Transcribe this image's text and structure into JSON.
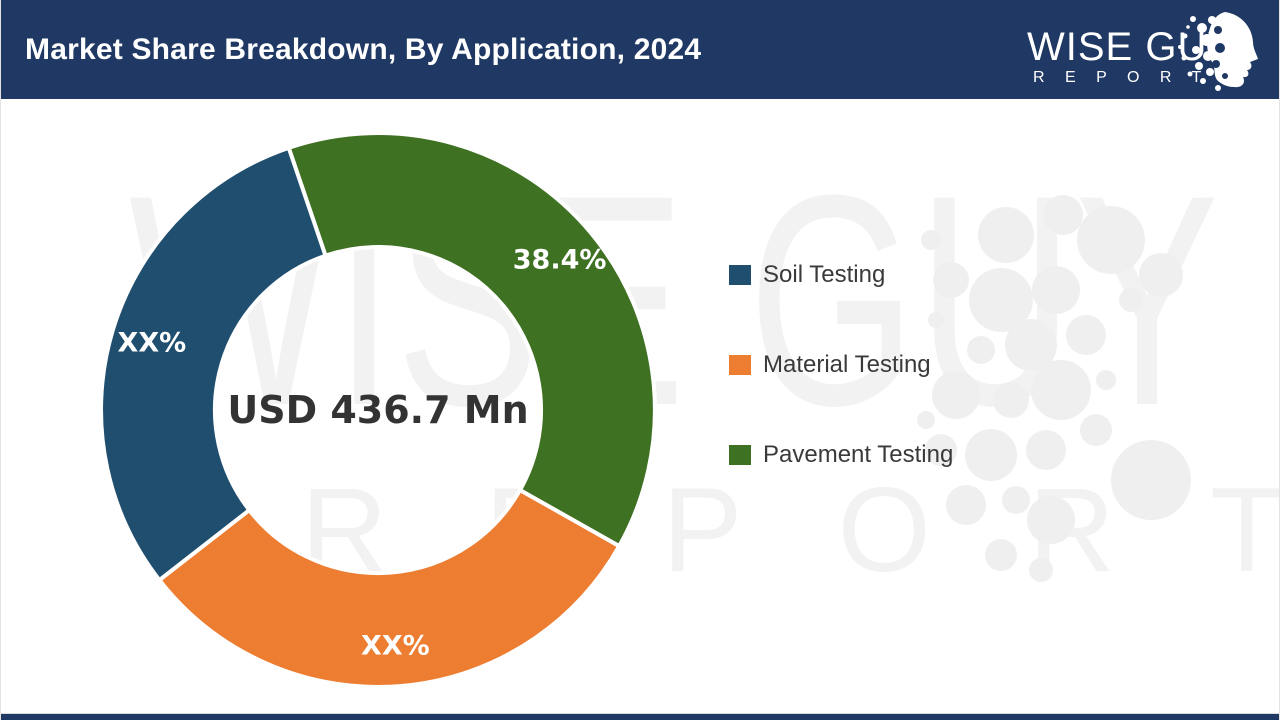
{
  "header": {
    "title": "Market Share Breakdown, By Application, 2024",
    "bg_color": "#1F3864",
    "logo": {
      "line1": "WISE GUY",
      "line2": "R E P O R T S"
    }
  },
  "chart_data": {
    "type": "donut",
    "title": "Market Share Breakdown, By Application, 2024",
    "center_label": "USD 436.7 Mn",
    "start_angle_deg": -18.8,
    "segments": [
      {
        "name": "Pavement Testing",
        "value_pct": 38.4,
        "label": "38.4%",
        "color": "#3F7123"
      },
      {
        "name": "Material Testing",
        "value_pct": 31.3,
        "label": "XX%",
        "color": "#ED7D31"
      },
      {
        "name": "Soil Testing",
        "value_pct": 30.3,
        "label": "XX%",
        "color": "#1F4E6F"
      }
    ],
    "legend": [
      {
        "label": "Soil Testing",
        "color": "#1F4E6F"
      },
      {
        "label": "Material Testing",
        "color": "#ED7D31"
      },
      {
        "label": "Pavement Testing",
        "color": "#3F7123"
      }
    ],
    "legend_position": "right",
    "hole_ratio": 0.59
  },
  "watermark": {
    "line1": "WISE GUY",
    "line2": "R E P O R T S"
  },
  "footer": {
    "bg_color": "#1F3864"
  }
}
